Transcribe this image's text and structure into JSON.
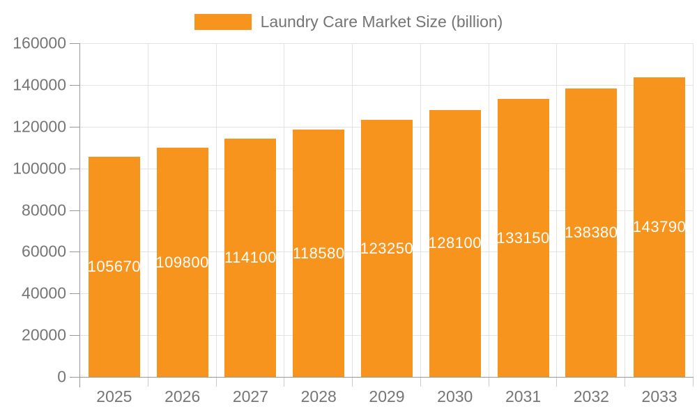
{
  "chart_data": {
    "type": "bar",
    "title": "Laundry Care Market Size (billion)",
    "categories": [
      "2025",
      "2026",
      "2027",
      "2028",
      "2029",
      "2030",
      "2031",
      "2032",
      "2033"
    ],
    "values": [
      105670,
      109800,
      114100,
      118580,
      123250,
      128100,
      133150,
      138380,
      143790
    ],
    "series": [
      {
        "name": "Laundry Care Market Size (billion)",
        "values": [
          105670,
          109800,
          114100,
          118580,
          123250,
          128100,
          133150,
          138380,
          143790
        ]
      }
    ],
    "xlabel": "",
    "ylabel": "",
    "ylim": [
      0,
      160000
    ],
    "yticks": [
      0,
      20000,
      40000,
      60000,
      80000,
      100000,
      120000,
      140000,
      160000
    ],
    "grid": true,
    "legend_position": "top-center",
    "legend_label": "Laundry Care Market Size (billion)",
    "bar_label_visible": true,
    "colors": {
      "bar": "#F7941E",
      "bar_label": "#FFFFFF",
      "axis_text": "#757575",
      "legend_text": "#757575",
      "gridline": "#E3E3E3",
      "axis_line": "#999999",
      "category_tick": "#CCCCCC",
      "background": "#FFFFFF"
    }
  }
}
